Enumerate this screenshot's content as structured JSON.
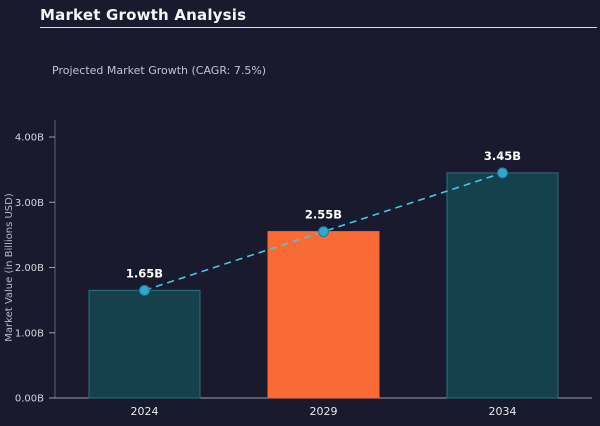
{
  "header": {
    "title": "Market Growth Analysis",
    "subtitle": "Projected Market Growth (CAGR: 7.5%)"
  },
  "colors": {
    "background": "#1a1a2e",
    "axis": "#9aa0ae",
    "tick_text": "#d4d4dc",
    "category_text": "#e8e8ee",
    "value_label_text": "#ffffff",
    "y_axis_title_text": "#b9b9c6"
  },
  "chart_data": {
    "type": "bar",
    "title": "Market Growth Analysis",
    "subtitle": "Projected Market Growth (CAGR: 7.5%)",
    "categories": [
      "2024",
      "2029",
      "2034"
    ],
    "values": [
      1.65,
      2.55,
      3.45
    ],
    "value_labels": [
      "1.65B",
      "2.55B",
      "3.45B"
    ],
    "bar_colors": [
      "#15414c",
      "#f96a35",
      "#15414c"
    ],
    "bar_edge_colors": [
      "#2a7181",
      "#f96a35",
      "#2a7181"
    ],
    "trend_line_color": "#45c6e8",
    "marker_color": "#2fa8cc",
    "marker_edge_color": "#1b7a96",
    "xlabel": "",
    "ylabel": "Market Value (in Billions USD)",
    "ylim": [
      0,
      4
    ],
    "yticks": [
      0,
      1,
      2,
      3,
      4
    ],
    "ytick_labels": [
      "0.00B",
      "1.00B",
      "2.00B",
      "3.00B",
      "4.00B"
    ],
    "grid": false,
    "legend": false
  }
}
